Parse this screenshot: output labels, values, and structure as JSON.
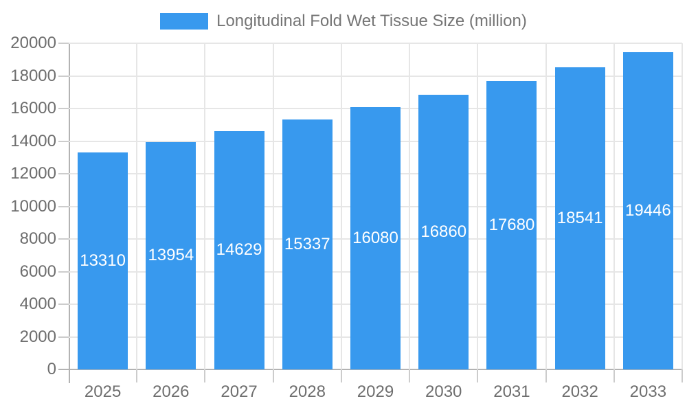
{
  "chart_data": {
    "type": "bar",
    "title": "Longitudinal Fold Wet Tissue Size (million)",
    "categories": [
      "2025",
      "2026",
      "2027",
      "2028",
      "2029",
      "2030",
      "2031",
      "2032",
      "2033"
    ],
    "values": [
      13310,
      13954,
      14629,
      15337,
      16080,
      16860,
      17680,
      18541,
      19446
    ],
    "series": [
      {
        "name": "Longitudinal Fold Wet Tissue Size (million)",
        "values": [
          13310,
          13954,
          14629,
          15337,
          16080,
          16860,
          17680,
          18541,
          19446
        ]
      }
    ],
    "xlabel": "",
    "ylabel": "",
    "ylim": [
      0,
      20000
    ],
    "ytick_step": 2000,
    "ytick_labels": [
      "0",
      "2000",
      "4000",
      "6000",
      "8000",
      "10000",
      "12000",
      "14000",
      "16000",
      "18000",
      "20000"
    ],
    "grid": true,
    "legend_position": "top",
    "value_labels_shown": true,
    "colors": {
      "bar": "#3899EE",
      "value_label": "#ffffff",
      "axis_label": "#6e6e6e",
      "legend_text": "#757575",
      "gridline": "#e6e6e6",
      "axis_line": "#b3b3b3",
      "tick": "#cccccc",
      "background": "#ffffff"
    }
  }
}
